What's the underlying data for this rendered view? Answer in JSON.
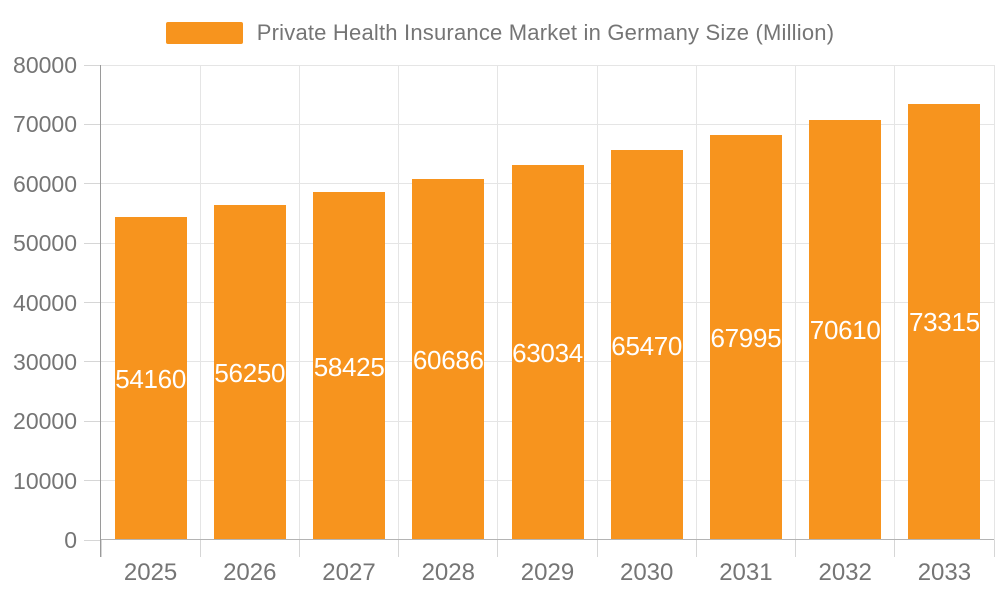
{
  "page": {
    "background": "#ffffff"
  },
  "chart_data": {
    "type": "bar",
    "title": "",
    "series_name": "Private Health Insurance Market in Germany Size (Million)",
    "categories": [
      "2025",
      "2026",
      "2027",
      "2028",
      "2029",
      "2030",
      "2031",
      "2032",
      "2033"
    ],
    "values": [
      54160,
      56250,
      58425,
      60686,
      63034,
      65470,
      67995,
      70610,
      73315
    ],
    "xlabel": "",
    "ylabel": "",
    "ylim": [
      0,
      80000
    ],
    "yticks": [
      0,
      10000,
      20000,
      30000,
      40000,
      50000,
      60000,
      70000,
      80000
    ],
    "grid": true,
    "legend_position": "top",
    "bar_color": "#F7941E",
    "bar_label_color": "#ffffff",
    "axis_text_color": "#757575"
  }
}
